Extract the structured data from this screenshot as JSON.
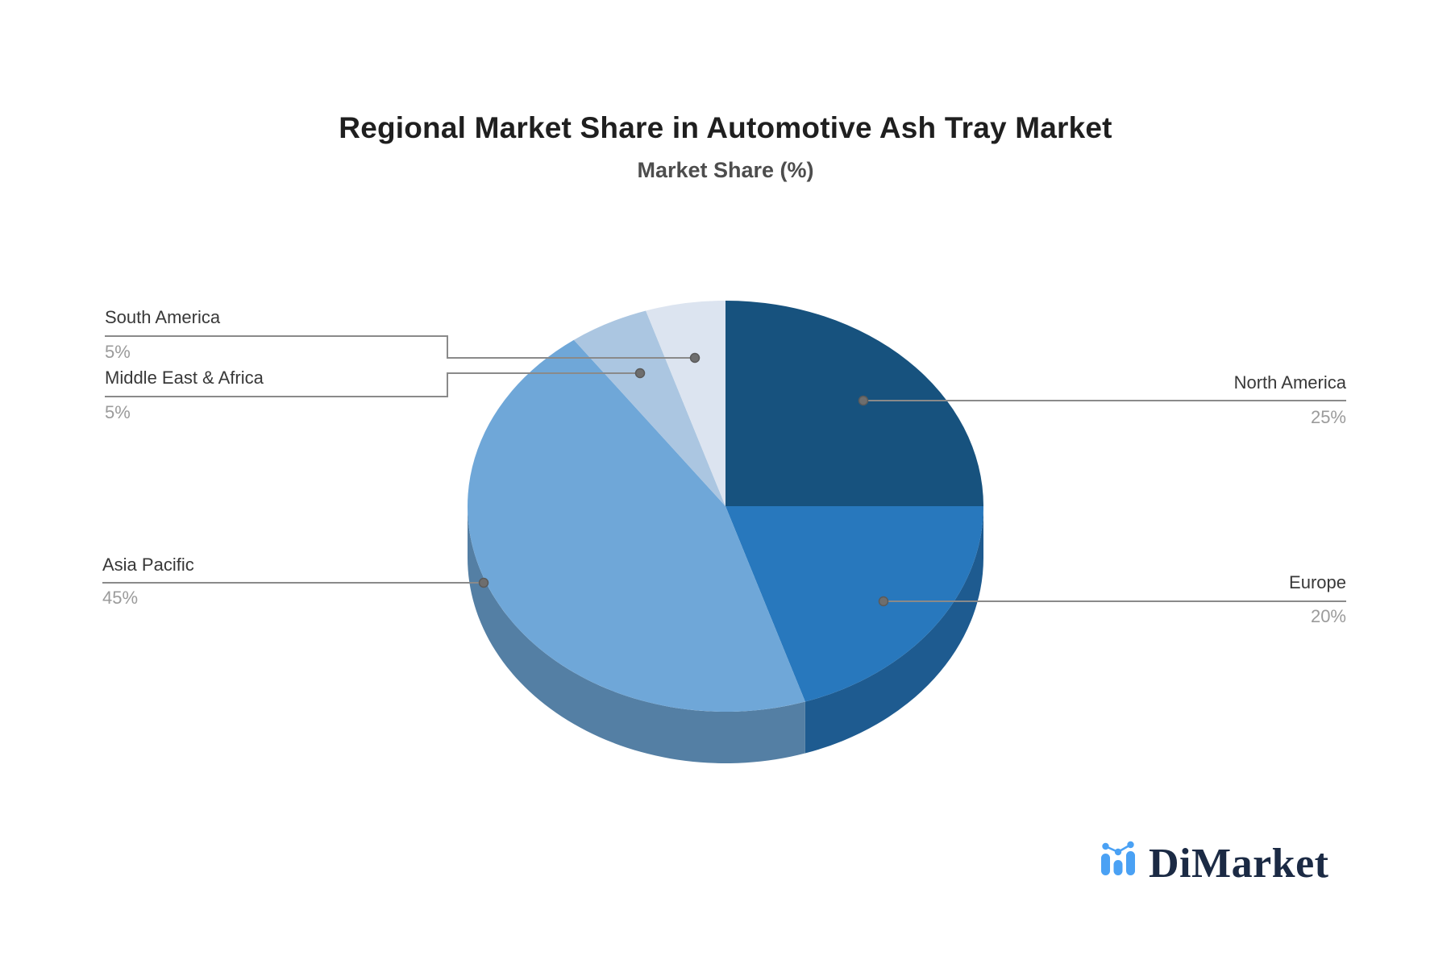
{
  "title": "Regional Market Share in Automotive Ash Tray Market",
  "subtitle": "Market Share (%)",
  "chart_data": {
    "type": "pie",
    "style": "3d",
    "title": "Regional Market Share in Automotive Ash Tray Market",
    "subtitle": "Market Share (%)",
    "unit": "%",
    "start_angle_deg": 0,
    "direction": "clockwise",
    "legend_position": "callout-labels",
    "slices": [
      {
        "label": "North America",
        "value": 25,
        "color": "#17527E"
      },
      {
        "label": "Europe",
        "value": 20,
        "color": "#2878BD"
      },
      {
        "label": "Asia Pacific",
        "value": 45,
        "color": "#6FA7D8"
      },
      {
        "label": "Middle East & Africa",
        "value": 5,
        "color": "#ABC6E1"
      },
      {
        "label": "South America",
        "value": 5,
        "color": "#DCE4F0"
      }
    ]
  },
  "callouts": {
    "south_america": {
      "label": "South America",
      "value": "5%"
    },
    "middle_east_africa": {
      "label": "Middle East & Africa",
      "value": "5%"
    },
    "asia_pacific": {
      "label": "Asia Pacific",
      "value": "45%"
    },
    "north_america": {
      "label": "North America",
      "value": "25%"
    },
    "europe": {
      "label": "Europe",
      "value": "20%"
    }
  },
  "colors": {
    "leader_line": "#8A8A8A",
    "leader_dot": "#6E6E6E",
    "label_text": "#383838",
    "value_text": "#9B9B9B",
    "title_text": "#1F1F1F",
    "subtitle_text": "#4D4D4D",
    "logo_blue": "#4AA1F4",
    "logo_navy": "#1B2A44",
    "background": "#FFFFFF"
  },
  "logo": {
    "brand": "DiMarket"
  }
}
